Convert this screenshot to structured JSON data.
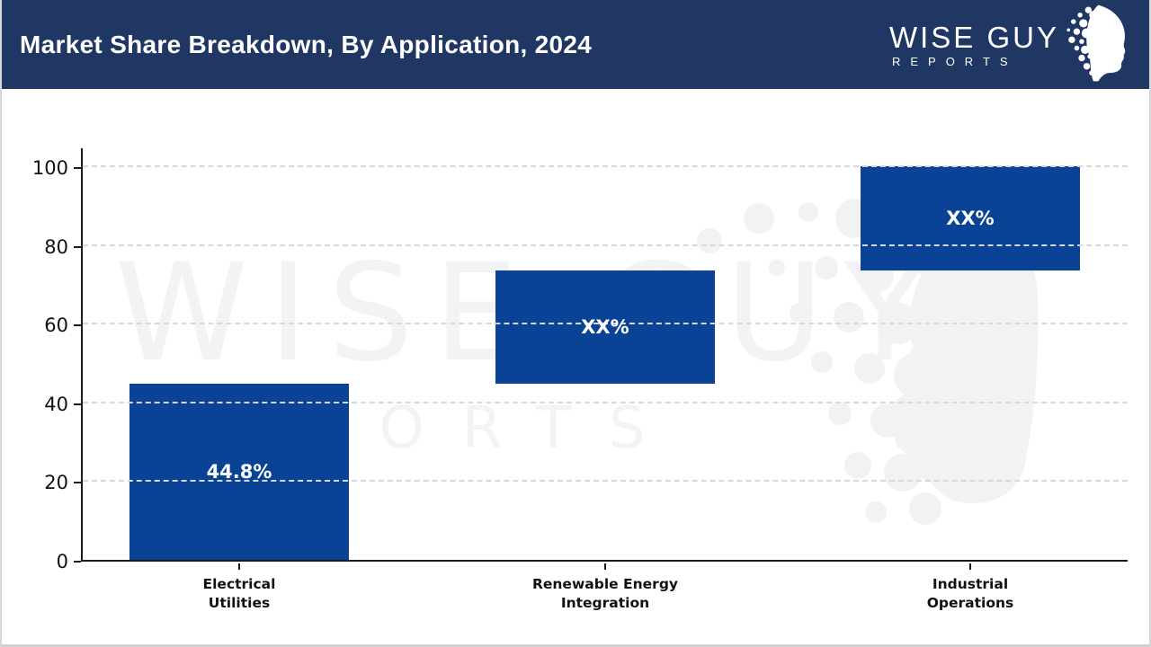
{
  "header": {
    "title": "Market Share Breakdown, By Application, 2024",
    "logo": {
      "line1": "WISE GUY",
      "line2": "REPORTS"
    }
  },
  "watermark": {
    "line1": "WISE GUY",
    "line2": "REPORTS"
  },
  "chart_data": {
    "type": "bar",
    "subtype": "waterfall",
    "title": "Market Share Breakdown, By Application, 2024",
    "categories": [
      {
        "name": "Electrical Utilities",
        "line1": "Electrical",
        "line2": "Utilities"
      },
      {
        "name": "Renewable Energy Integration",
        "line1": "Renewable Energy",
        "line2": "Integration"
      },
      {
        "name": "Industrial Operations",
        "line1": "Industrial",
        "line2": "Operations"
      }
    ],
    "segments": [
      {
        "category": "Electrical Utilities",
        "start": 0,
        "end": 44.8,
        "value": 44.8,
        "label": "44.8%"
      },
      {
        "category": "Renewable Energy Integration",
        "start": 44.8,
        "end": 73.5,
        "value": 28.7,
        "label": "XX%"
      },
      {
        "category": "Industrial Operations",
        "start": 73.5,
        "end": 100,
        "value": 26.5,
        "label": "XX%"
      }
    ],
    "yticks": [
      0,
      20,
      40,
      60,
      80,
      100
    ],
    "ylim": [
      0,
      105
    ],
    "xlabel": "",
    "ylabel": "",
    "grid": "horizontal dashed",
    "legend": "none",
    "bar_color": "#0a4396",
    "bar_label_color": "#ffffff"
  },
  "colors": {
    "header_bg": "#203663",
    "bar": "#0a4396",
    "grid": "#d8d8d8",
    "axis": "#1a1a1a",
    "watermark": "#f3f3f6",
    "page_border": "#d8d8d8"
  }
}
